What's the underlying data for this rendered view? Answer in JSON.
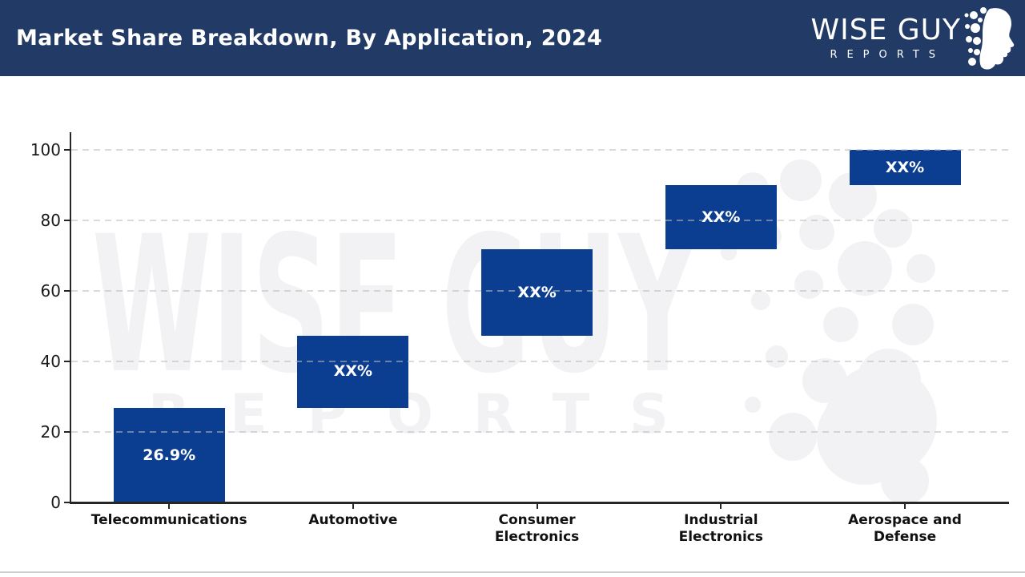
{
  "header": {
    "title": "Market Share Breakdown, By Application, 2024",
    "logo": {
      "primary": "WISE GUY",
      "secondary": "REPORTS"
    }
  },
  "watermark": {
    "primary": "WISE GUY",
    "secondary": "REPORTS"
  },
  "chart_data": {
    "type": "bar",
    "subtype": "floating-waterfall",
    "title": "Market Share Breakdown, By Application, 2024",
    "categories": [
      "Telecommunications",
      "Automotive",
      "Consumer\nElectronics",
      "Industrial\nElectronics",
      "Aerospace and\nDefense"
    ],
    "segments": [
      {
        "category": "Telecommunications",
        "start": 0,
        "end": 26.9,
        "label": "26.9%"
      },
      {
        "category": "Automotive",
        "start": 26.9,
        "end": 47.2,
        "label": "XX%"
      },
      {
        "category": "Consumer Electronics",
        "start": 47.2,
        "end": 71.8,
        "label": "XX%"
      },
      {
        "category": "Industrial Electronics",
        "start": 71.8,
        "end": 90.0,
        "label": "XX%"
      },
      {
        "category": "Aerospace and Defense",
        "start": 90.0,
        "end": 100.0,
        "label": "XX%"
      }
    ],
    "yticks": [
      0,
      20,
      40,
      60,
      80,
      100
    ],
    "ylim": [
      0,
      105
    ],
    "xlabel": "",
    "ylabel": "",
    "grid": {
      "axis": "y",
      "style": "dashed"
    },
    "legend": null,
    "colors": {
      "bar": "#0b3d91",
      "bar_label": "#ffffff",
      "grid": "#dbdbdb",
      "axis": "#262626",
      "tick_label": "#1a1a1a",
      "header_bg": "#213a66",
      "watermark": "#f2f2f4"
    }
  }
}
